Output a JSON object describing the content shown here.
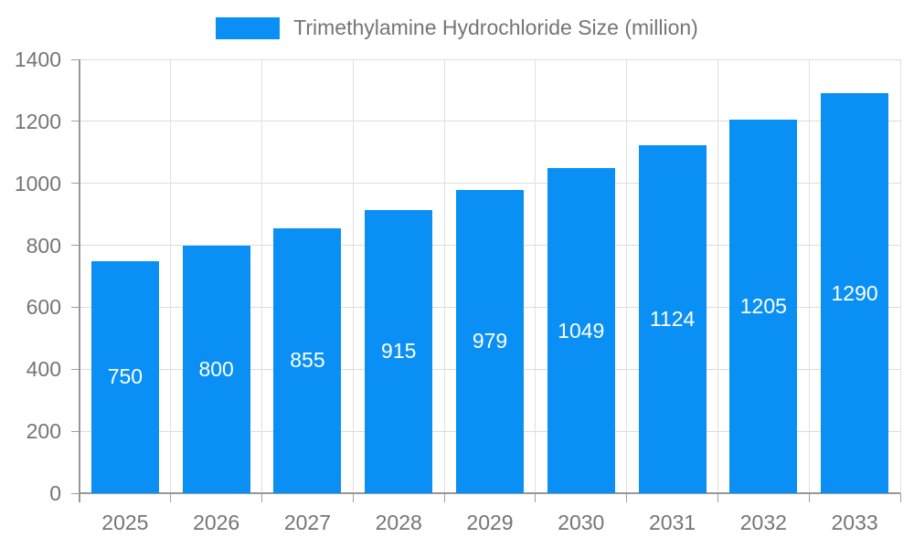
{
  "chart_data": {
    "type": "bar",
    "title": "",
    "legend": [
      "Trimethylamine Hydrochloride Size (million)"
    ],
    "legend_position": "top",
    "categories": [
      "2025",
      "2026",
      "2027",
      "2028",
      "2029",
      "2030",
      "2031",
      "2032",
      "2033"
    ],
    "values": [
      750,
      800,
      855,
      915,
      979,
      1049,
      1124,
      1205,
      1290
    ],
    "bar_value_labels": [
      "750",
      "800",
      "855",
      "915",
      "979",
      "1049",
      "1124",
      "1205",
      "1290"
    ],
    "xlabel": "",
    "ylabel": "",
    "ylim": [
      0,
      1400
    ],
    "ytick_step": 200,
    "ytick_labels": [
      "0",
      "200",
      "400",
      "600",
      "800",
      "1000",
      "1200",
      "1400"
    ],
    "grid": true
  },
  "colors": {
    "bar": "#0a90f4",
    "bar_value_text": "#ffffff",
    "grid_h": "#dcdcdc",
    "grid_v": "#e0e0e0",
    "axis": "#979797",
    "tick": "#9e9e9e",
    "text": "#757575",
    "background": "#ffffff"
  }
}
